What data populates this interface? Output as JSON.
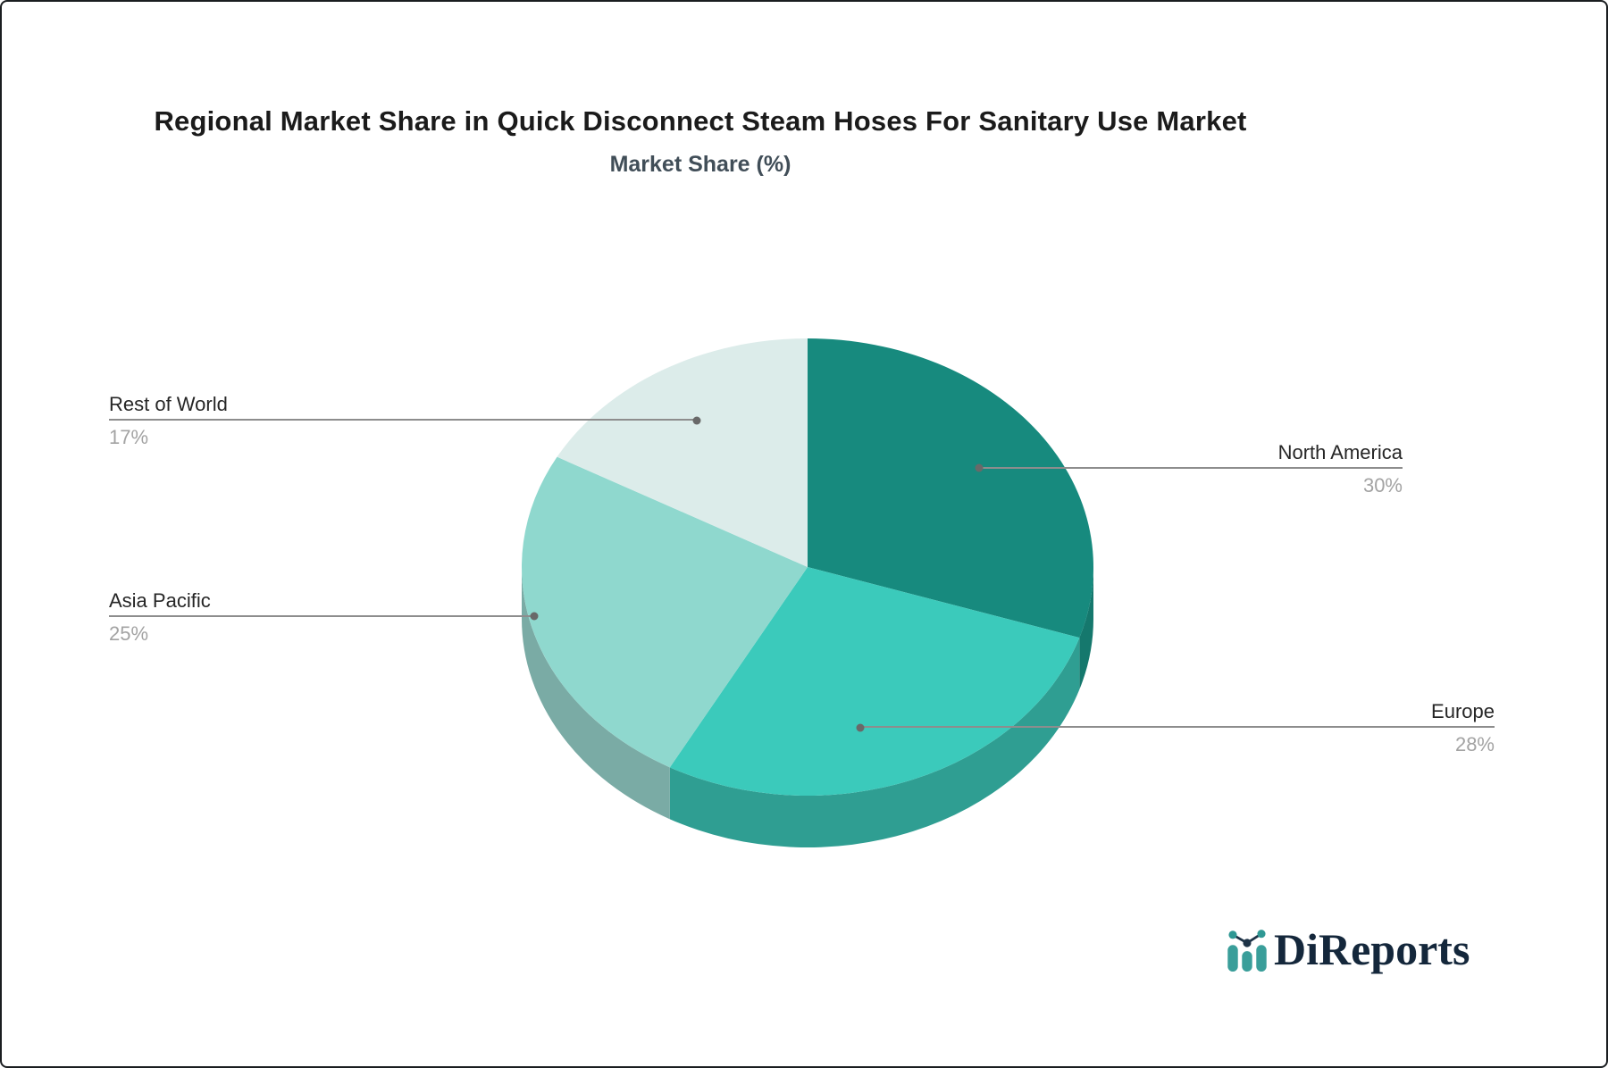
{
  "title": "Regional Market Share in Quick Disconnect Steam Hoses For Sanitary Use Market",
  "subtitle": "Market Share (%)",
  "chart_data": {
    "type": "pie",
    "style_3d": true,
    "start_angle_deg": 0,
    "direction": "clockwise",
    "unit": "%",
    "legend_position": "callout-labels",
    "slices": [
      {
        "label": "North America",
        "value": 30,
        "value_text": "30%",
        "color": "#178a7e",
        "side_color": "#15786d"
      },
      {
        "label": "Europe",
        "value": 28,
        "value_text": "28%",
        "color": "#3bcabb",
        "side_color": "#2f9e92"
      },
      {
        "label": "Asia Pacific",
        "value": 25,
        "value_text": "25%",
        "color": "#8fd8ce",
        "side_color": "#7aaba5"
      },
      {
        "label": "Rest of World",
        "value": 17,
        "value_text": "17%",
        "color": "#dcecea",
        "side_color": "#b8cfcb"
      }
    ]
  },
  "branding": {
    "logo_text": "DiReports"
  },
  "colors": {
    "background": "#ffffff",
    "title": "#1b1b1b",
    "subtitle": "#414e58",
    "label": "#262626",
    "value": "#a3a3a3",
    "connector": "#8d8d8d",
    "connector_dot": "#696969",
    "logo_text": "#14273b",
    "logo_teal": "#3a9e9a",
    "logo_navy": "#1e3347"
  }
}
